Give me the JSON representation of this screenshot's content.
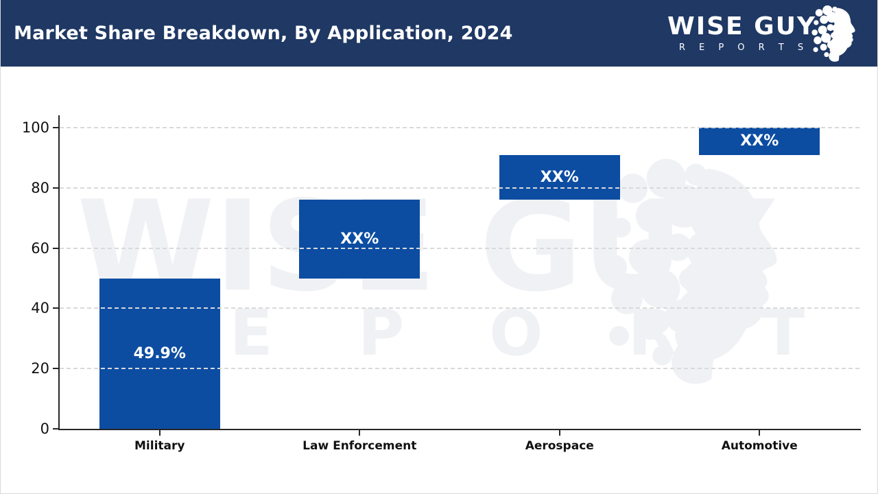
{
  "page": {
    "background": "#ffffff",
    "frame_border_color": "#d8d8d8"
  },
  "header": {
    "background": "#1f3864",
    "title": "Market Share Breakdown, By Application, 2024",
    "title_color": "#ffffff",
    "logo": {
      "wordmark": "WISE GUY",
      "subtext": "R E P O R T S"
    }
  },
  "watermark": {
    "line1": "WISE GUY",
    "line2": "R E P O R T S",
    "color": "#f0f1f4"
  },
  "chart_data": {
    "type": "bar",
    "variant": "waterfall",
    "title": "Market Share Breakdown, By Application, 2024",
    "categories": [
      "Military",
      "Law Enforcement",
      "Aerospace",
      "Automotive"
    ],
    "segments": [
      {
        "category": "Military",
        "start": 0,
        "end": 49.9,
        "label": "49.9%"
      },
      {
        "category": "Law Enforcement",
        "start": 49.9,
        "end": 76,
        "label": "XX%"
      },
      {
        "category": "Aerospace",
        "start": 76,
        "end": 91,
        "label": "XX%"
      },
      {
        "category": "Automotive",
        "start": 91,
        "end": 100,
        "label": "XX%"
      }
    ],
    "values_masked": true,
    "xlabel": "",
    "ylabel": "",
    "yticks": [
      0,
      20,
      40,
      60,
      80,
      100
    ],
    "ylim": [
      0,
      104
    ],
    "grid": {
      "axis": "y",
      "style": "dashed",
      "color": "#d9d9d9",
      "above_bars": true
    },
    "legend": "none",
    "bar_color": "#0c4da2",
    "bar_label_color": "#ffffff",
    "axis_color": "#262626",
    "tick_label_color": "#111111"
  }
}
